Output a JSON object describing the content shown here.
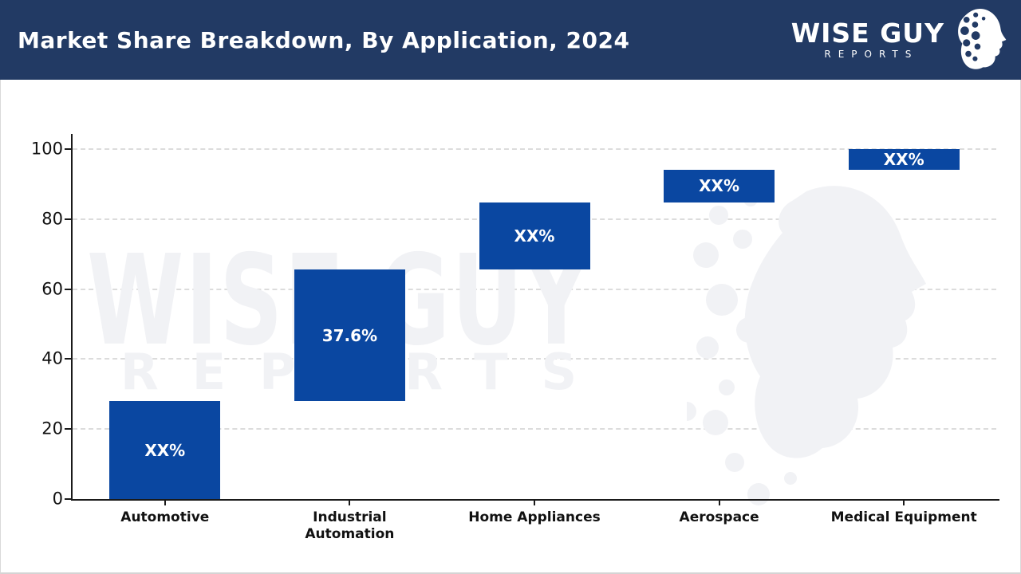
{
  "header": {
    "title": "Market Share Breakdown, By Application, 2024",
    "logo": {
      "line1": "WISE GUY",
      "line2": "REPORTS"
    }
  },
  "watermark": {
    "line1": "WISE GUY",
    "line2": "REPORTS"
  },
  "chart_data": {
    "type": "bar",
    "subtype": "floating-waterfall",
    "title": "Market Share Breakdown, By Application, 2024",
    "categories": [
      "Automotive",
      "Industrial Automation",
      "Home Appliances",
      "Aerospace",
      "Medical Equipment"
    ],
    "segments": [
      {
        "category": "Automotive",
        "start": 0,
        "end": 28,
        "value": 28,
        "label": "XX%"
      },
      {
        "category": "Industrial Automation",
        "start": 28,
        "end": 65.6,
        "value": 37.6,
        "label": "37.6%"
      },
      {
        "category": "Home Appliances",
        "start": 65.6,
        "end": 84.8,
        "value": 19.2,
        "label": "XX%"
      },
      {
        "category": "Aerospace",
        "start": 84.8,
        "end": 94.1,
        "value": 9.3,
        "label": "XX%"
      },
      {
        "category": "Medical Equipment",
        "start": 94.1,
        "end": 100,
        "value": 5.9,
        "label": "XX%"
      }
    ],
    "ylim": [
      0,
      100
    ],
    "yticks": [
      0,
      20,
      40,
      60,
      80,
      100
    ],
    "grid": "dashed-horizontal",
    "legend": "none",
    "bar_color": "#0A47A1",
    "label_color": "#ffffff"
  },
  "colors": {
    "header_bg": "#223A64",
    "bar": "#0A47A1",
    "axis": "#1a1a1a",
    "gridline": "#dcdcdc",
    "watermark": "#f1f2f5",
    "page_border": "#d9d9d9"
  }
}
